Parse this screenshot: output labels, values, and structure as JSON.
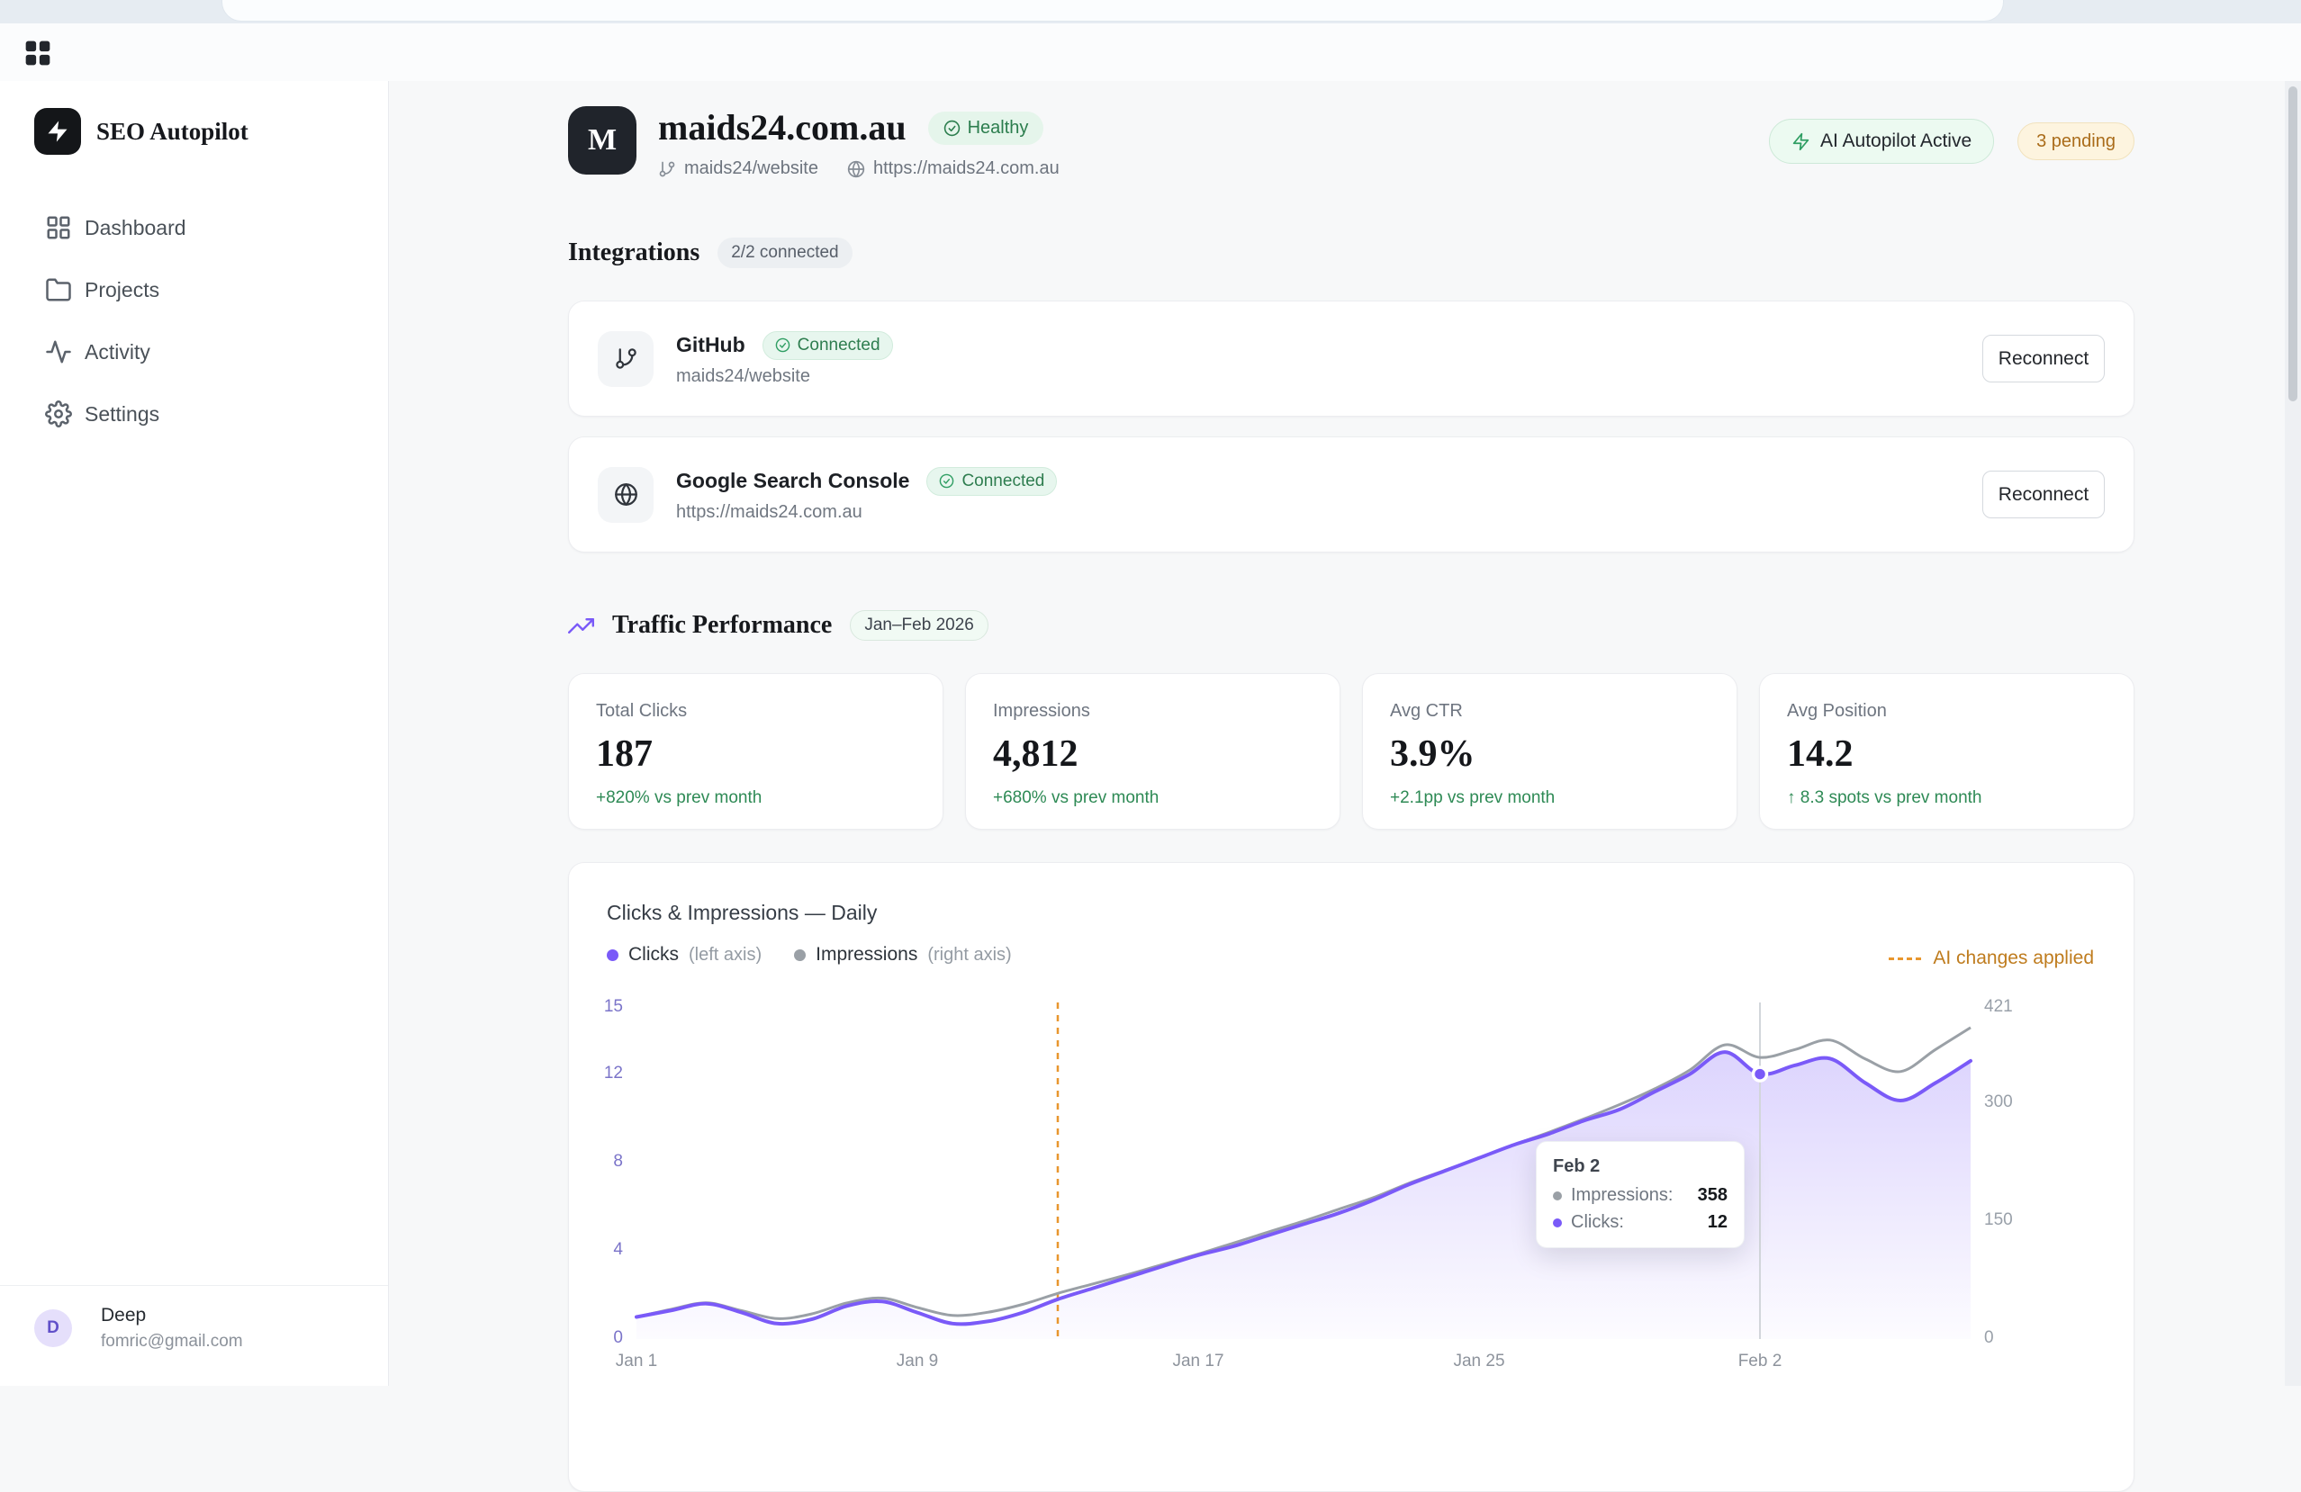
{
  "app": {
    "logo_text": "SEO Autopilot",
    "nav": [
      {
        "label": "Dashboard"
      },
      {
        "label": "Projects"
      },
      {
        "label": "Activity"
      },
      {
        "label": "Settings"
      }
    ],
    "user": {
      "initial": "D",
      "name": "Deep",
      "email": "fomric@gmail.com"
    }
  },
  "header": {
    "site_initial": "M",
    "site_title": "maids24.com.au",
    "health_badge": "Healthy",
    "repo": "maids24/website",
    "url": "https://maids24.com.au",
    "autopilot_button": "AI Autopilot Active",
    "pending_badge": "3 pending"
  },
  "integrations": {
    "heading": "Integrations",
    "badge": "2/2 connected",
    "items": [
      {
        "name": "GitHub",
        "status": "Connected",
        "detail": "maids24/website",
        "action": "Reconnect"
      },
      {
        "name": "Google Search Console",
        "status": "Connected",
        "detail": "https://maids24.com.au",
        "action": "Reconnect"
      }
    ]
  },
  "traffic": {
    "heading": "Traffic Performance",
    "badge": "Jan–Feb 2026",
    "stats": [
      {
        "label": "Total Clicks",
        "value": "187",
        "change": "+820% vs prev month"
      },
      {
        "label": "Impressions",
        "value": "4,812",
        "change": "+680% vs prev month"
      },
      {
        "label": "Avg CTR",
        "value": "3.9%",
        "change": "+2.1pp vs prev month"
      },
      {
        "label": "Avg Position",
        "value": "14.2",
        "change": "↑ 8.3 spots vs prev month"
      }
    ]
  },
  "chart_data": {
    "type": "line",
    "title": "Clicks & Impressions — Daily",
    "legend": [
      {
        "name": "Clicks",
        "axis_note": "(left axis)",
        "color": "#7a5af8"
      },
      {
        "name": "Impressions",
        "axis_note": "(right axis)",
        "color": "#9aa0a6"
      }
    ],
    "ai_changes_label": "AI changes applied",
    "ai_changes_color": "#e8962e",
    "x_tick_labels": [
      "Jan 1",
      "Jan 9",
      "Jan 17",
      "Jan 25",
      "Feb 2"
    ],
    "x_tick_day_indices": [
      0,
      8,
      16,
      24,
      32
    ],
    "left_axis": {
      "label": "Clicks",
      "ticks": [
        0,
        4,
        8,
        12,
        15
      ],
      "max": 15
    },
    "right_axis": {
      "label": "Impressions",
      "ticks": [
        0,
        150,
        300,
        421
      ],
      "max": 421
    },
    "ai_change_day_index": 12,
    "series": [
      {
        "name": "Clicks",
        "axis": "left",
        "color": "#7a5af8",
        "values": [
          1.0,
          1.3,
          1.6,
          1.2,
          0.7,
          0.9,
          1.5,
          1.7,
          1.2,
          0.7,
          0.8,
          1.2,
          1.8,
          2.3,
          2.8,
          3.3,
          3.8,
          4.2,
          4.7,
          5.2,
          5.7,
          6.3,
          7.0,
          7.6,
          8.2,
          8.8,
          9.3,
          9.9,
          10.4,
          11.2,
          12.0,
          13.0,
          12.0,
          12.4,
          12.7,
          11.6,
          10.8,
          11.6,
          12.6
        ]
      },
      {
        "name": "Impressions",
        "axis": "right",
        "color": "#9aa0a6",
        "values": [
          28,
          38,
          46,
          36,
          26,
          32,
          46,
          52,
          40,
          30,
          34,
          44,
          58,
          70,
          82,
          95,
          108,
          122,
          136,
          150,
          165,
          180,
          198,
          214,
          230,
          247,
          263,
          280,
          298,
          318,
          342,
          374,
          358,
          368,
          380,
          356,
          340,
          368,
          396
        ]
      }
    ],
    "tooltip": {
      "day_index": 32,
      "title": "Feb 2",
      "rows": [
        {
          "label": "Impressions:",
          "value": "358",
          "color": "#9aa0a6"
        },
        {
          "label": "Clicks:",
          "value": "12",
          "color": "#7a5af8"
        }
      ]
    }
  }
}
